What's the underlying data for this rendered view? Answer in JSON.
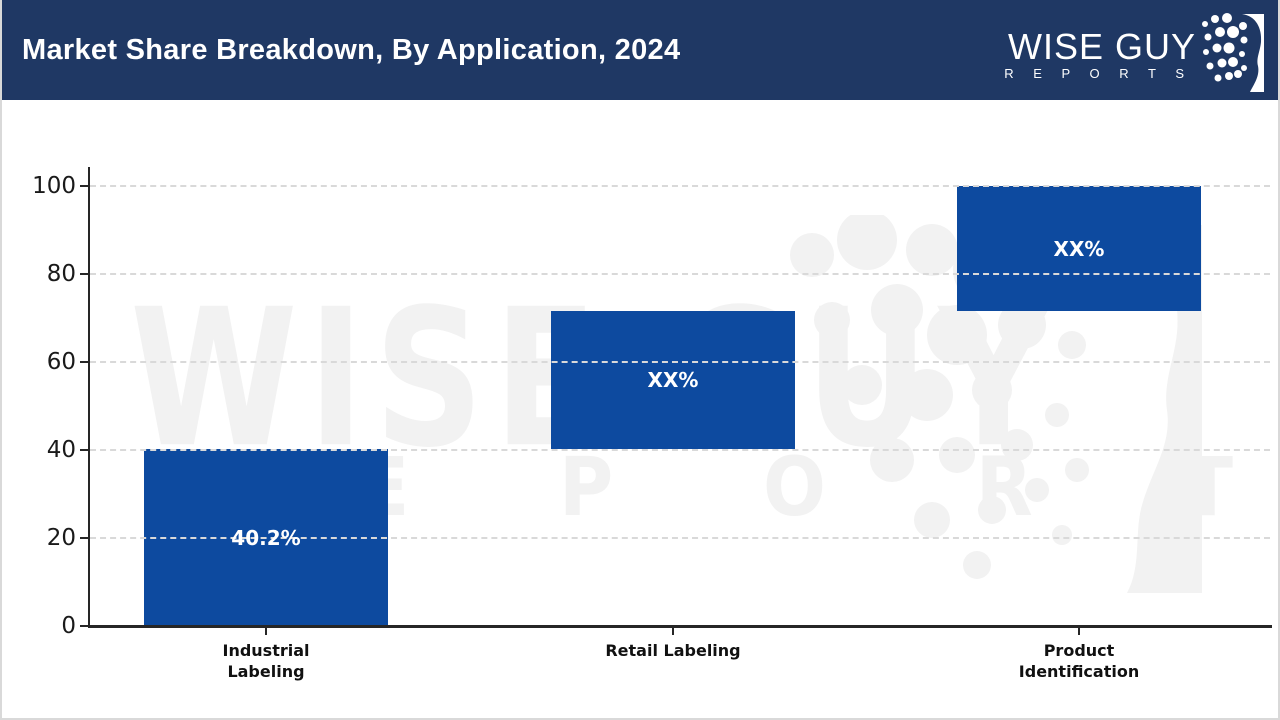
{
  "header": {
    "title": "Market Share Breakdown, By Application, 2024",
    "logo": {
      "line1": "WISE GUY",
      "line2": "R E P O R T S"
    }
  },
  "watermark": {
    "line1": "WISE GUY",
    "line2": "R E P O R T S"
  },
  "chart_data": {
    "type": "bar",
    "subtype": "waterfall-style floating bars",
    "title": "Market Share Breakdown, By Application, 2024",
    "categories": [
      "Industrial\nLabeling",
      "Retail Labeling",
      "Product\nIdentification"
    ],
    "bars": [
      {
        "category": "Industrial Labeling",
        "start": 0,
        "end": 40.2,
        "label": "40.2%"
      },
      {
        "category": "Retail Labeling",
        "start": 40.2,
        "end": 71.5,
        "label": "XX%"
      },
      {
        "category": "Product Identification",
        "start": 71.5,
        "end": 100,
        "label": "XX%"
      }
    ],
    "ylim": [
      0,
      100
    ],
    "yticks": [
      0,
      20,
      40,
      60,
      80,
      100
    ],
    "xlabel": "",
    "ylabel": "",
    "grid": "horizontal dashed, drawn over bars",
    "legend": "none"
  },
  "colors": {
    "header_bg": "#1f3864",
    "bar": "#0d4a9f",
    "bar_label": "#ffffff",
    "grid": "#d9d9d9",
    "axis": "#262626",
    "tick_text": "#1a1a1a",
    "watermark": "#f2f2f2",
    "page_border": "#d9d9d9"
  }
}
